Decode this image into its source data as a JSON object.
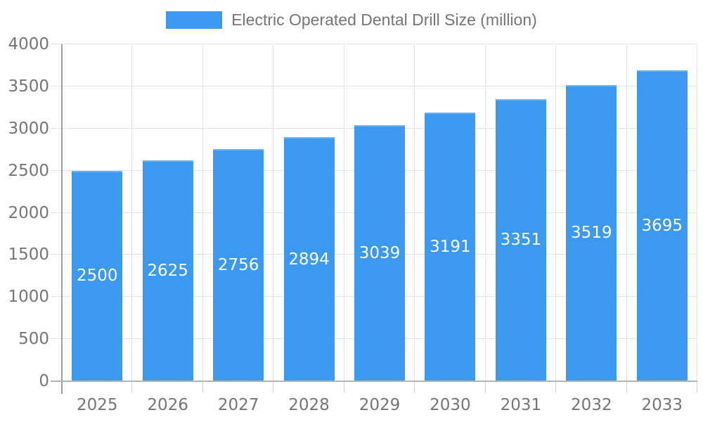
{
  "legend": {
    "label": "Electric Operated Dental Drill Size (million)"
  },
  "chart_data": {
    "type": "bar",
    "title": "Electric Operated Dental Drill Size (million)",
    "categories": [
      "2025",
      "2026",
      "2027",
      "2028",
      "2029",
      "2030",
      "2031",
      "2032",
      "2033"
    ],
    "values": [
      2500,
      2625,
      2756,
      2894,
      3039,
      3191,
      3351,
      3519,
      3695
    ],
    "xlabel": "",
    "ylabel": "",
    "ylim": [
      0,
      4000
    ],
    "y_ticks": [
      0,
      500,
      1000,
      1500,
      2000,
      2500,
      3000,
      3500,
      4000
    ],
    "grid": true,
    "legend_position": "top-center",
    "value_labels": "inside-center",
    "colors": {
      "bar_fill": "#3c99f0",
      "bar_top_edge": "#6db1f5",
      "bar_value_text": "#ffffff",
      "axis_text": "#757575",
      "gridline": "#e3e3e3",
      "x_axis_line": "#b3b3b3",
      "y_axis_line": "#9e9e9e"
    }
  }
}
